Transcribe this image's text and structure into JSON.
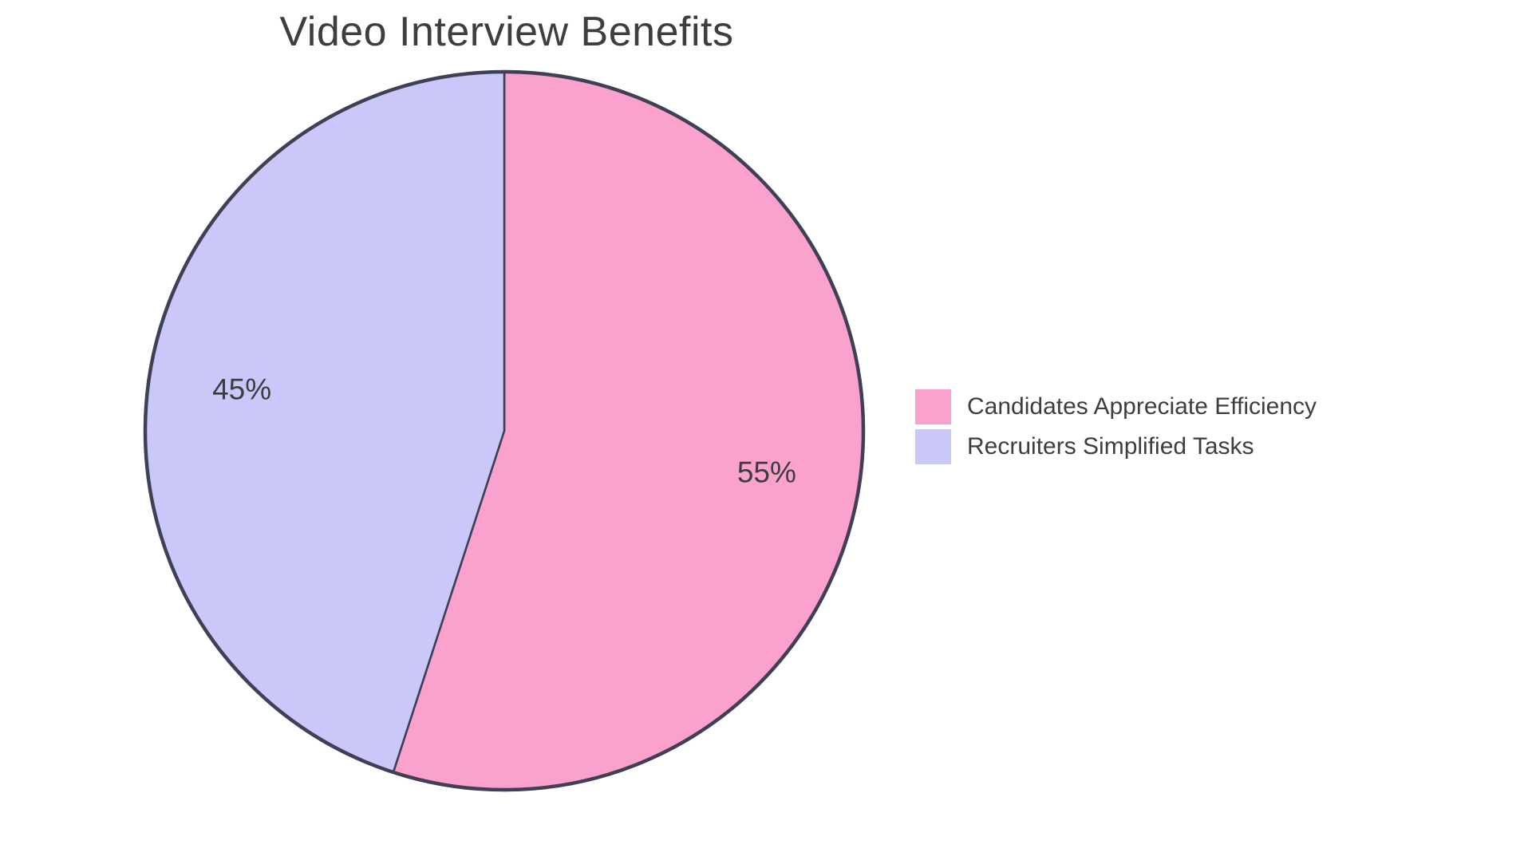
{
  "chart_data": {
    "type": "pie",
    "title": "Video Interview Benefits",
    "slices": [
      {
        "label": "Candidates Appreciate Efficiency",
        "value": 55,
        "percent_label": "55%",
        "color": "#FBA1CE"
      },
      {
        "label": "Recruiters Simplified Tasks",
        "value": 45,
        "percent_label": "45%",
        "color": "#C9C8F9"
      }
    ],
    "start_angle_deg": 0,
    "direction": "clockwise",
    "slice_outline_color": "#3F4056",
    "percent_label_color": "#3D3D3D",
    "title_color": "#3E3E3E",
    "legend_position": "right",
    "legend_text_color": "#3E3E3E",
    "background_color": "#FFFFFF"
  }
}
